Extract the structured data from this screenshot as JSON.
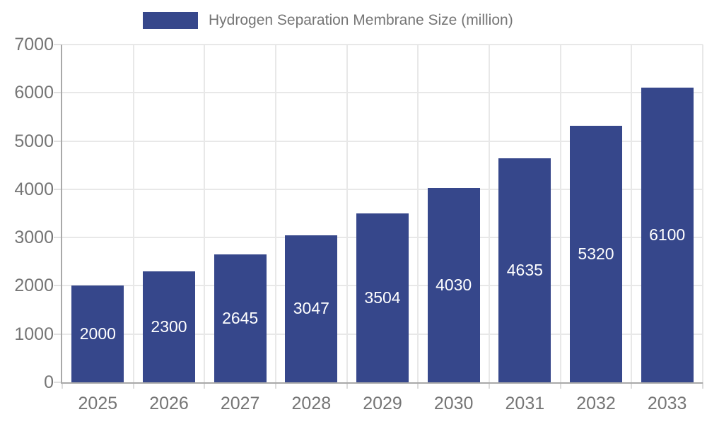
{
  "chart_data": {
    "type": "bar",
    "categories": [
      "2025",
      "2026",
      "2027",
      "2028",
      "2029",
      "2030",
      "2031",
      "2032",
      "2033"
    ],
    "series": [
      {
        "name": "Hydrogen Separation Membrane Size (million)",
        "values": [
          2000,
          2300,
          2645,
          3047,
          3504,
          4030,
          4635,
          5320,
          6100
        ]
      }
    ],
    "title": "",
    "xlabel": "",
    "ylabel": "",
    "ylim": [
      0,
      7000
    ],
    "ytick_step": 1000,
    "grid": true,
    "legend_position": "top",
    "bar_value_labels": true
  },
  "colors": {
    "bar": "#36478B",
    "bar_label": "#FFFFFF",
    "axis_text": "#757575",
    "legend_text": "#757575",
    "gridline": "#E8E8E8",
    "axis_line": "#A9A9A9",
    "background": "#FFFFFF"
  }
}
